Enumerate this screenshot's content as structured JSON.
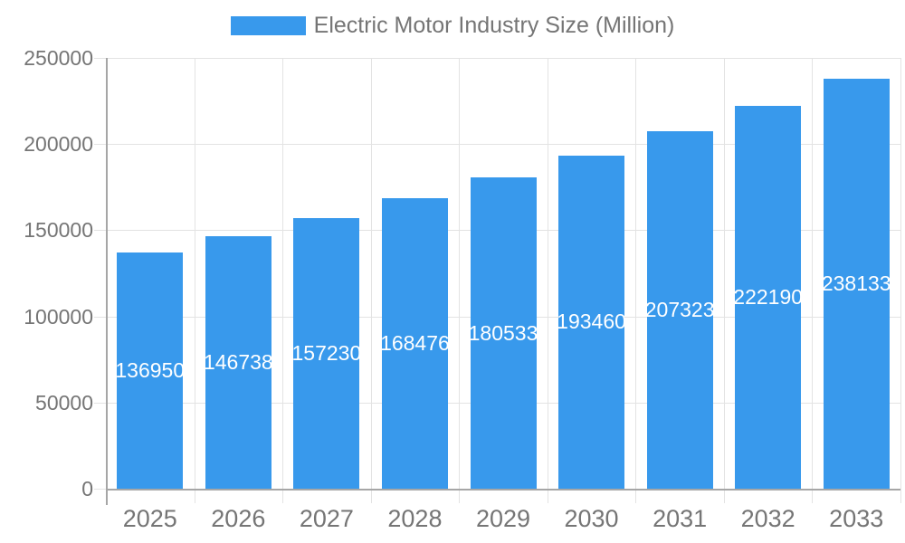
{
  "legend": {
    "label": "Electric Motor Industry Size (Million)"
  },
  "colors": {
    "bar": "#3899EC",
    "grid": "#E3E3E3",
    "axis": "#A6A6A6",
    "axis_text": "#757575",
    "value_text": "#FFFFFF"
  },
  "chart_data": {
    "type": "bar",
    "title": "Electric Motor Industry Size (Million)",
    "series_name": "Electric Motor Industry Size (Million)",
    "categories": [
      "2025",
      "2026",
      "2027",
      "2028",
      "2029",
      "2030",
      "2031",
      "2032",
      "2033"
    ],
    "values": [
      136950,
      146738,
      157230,
      168476,
      180533,
      193460,
      207323,
      222190,
      238133
    ],
    "value_labels": [
      "136950",
      "146738",
      "157230",
      "168476",
      "180533",
      "193460",
      "207323",
      "222190",
      "238133"
    ],
    "xlabel": "",
    "ylabel": "",
    "ylim": [
      0,
      250000
    ],
    "yticks": [
      0,
      50000,
      100000,
      150000,
      200000,
      250000
    ],
    "grid": true,
    "legend_position": "top",
    "value_label_position": "inside-center"
  }
}
